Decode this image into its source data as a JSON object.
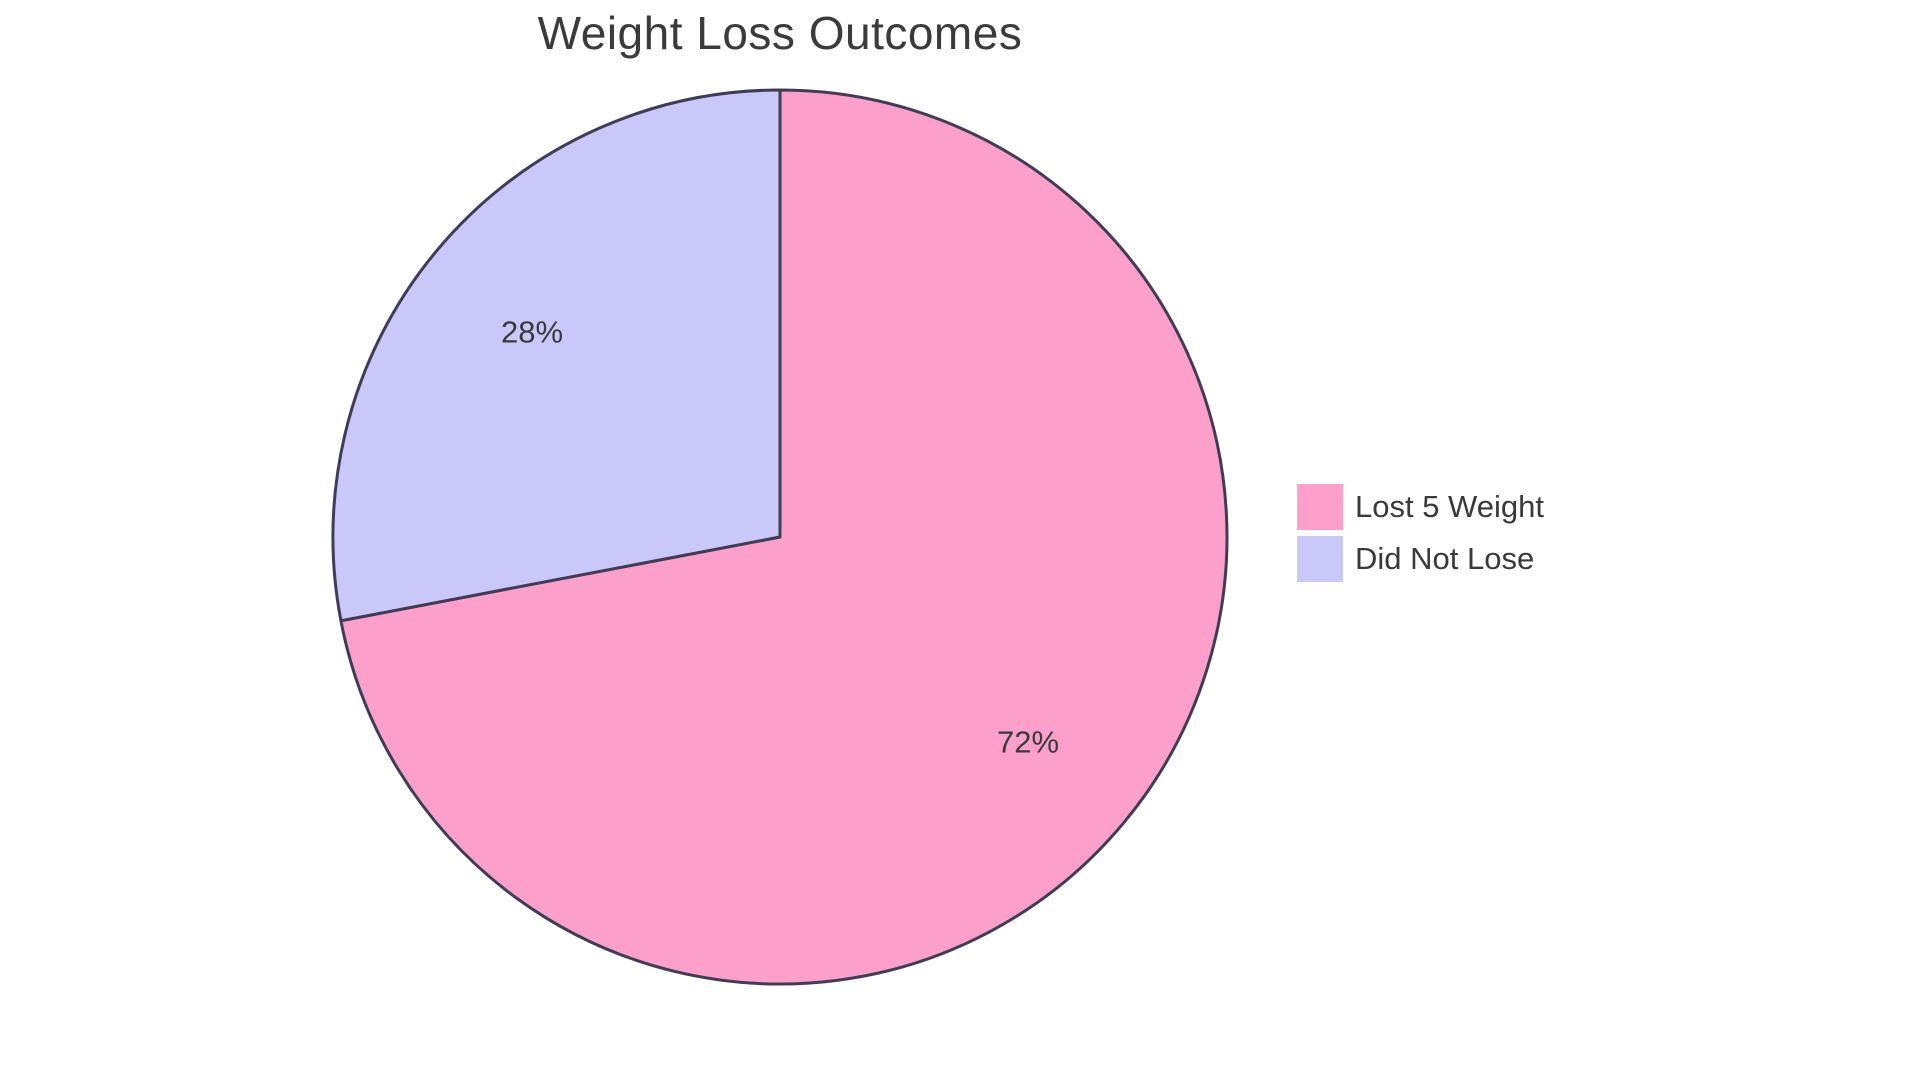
{
  "chart_data": {
    "type": "pie",
    "title": "Weight Loss Outcomes",
    "slices": [
      {
        "label": "Lost 5 Weight",
        "value": 72,
        "pct_label": "72%",
        "color": "#FCA0CB"
      },
      {
        "label": "Did Not Lose",
        "value": 28,
        "pct_label": "28%",
        "color": "#C9C8F9"
      }
    ],
    "start_angle_deg": 0,
    "direction": "clockwise",
    "stroke_color": "#3F3D56",
    "stroke_width": 3,
    "label_color": "#3A3A3A",
    "label_radius_ratio": 0.72,
    "legend_position": "right",
    "background": "#FFFFFF"
  }
}
